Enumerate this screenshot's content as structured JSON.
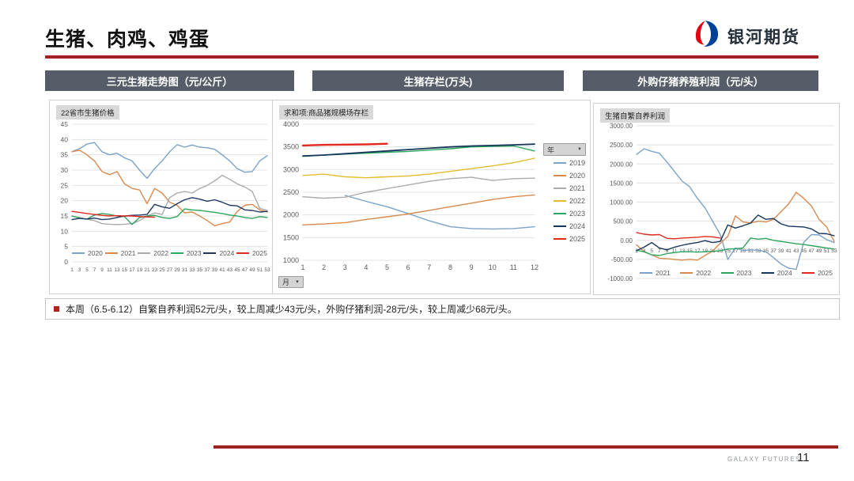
{
  "page": {
    "title": "生猪、肉鸡、鸡蛋",
    "accent_red": "#a32026",
    "header_bar_color": "#565d68",
    "footer_brand": "GALAXY FUTURES",
    "page_number": "11"
  },
  "logo": {
    "text": "银河期货",
    "red": "#e60012",
    "blue": "#004098"
  },
  "panels": [
    {
      "header": "三元生猪走势图（元/公斤）"
    },
    {
      "header": "生猪存栏(万头)"
    },
    {
      "header": "外购仔猪养殖利润（元/头）"
    }
  ],
  "filters": {
    "year_label": "年",
    "month_label": "月",
    "dropdown_arrow": "▼"
  },
  "note": {
    "text": "本周（6.5-6.12）自繁自养利润52元/头，较上周减少43元/头，外购仔猪利润-28元/头，较上周减少68元/头。"
  },
  "chart_data": [
    {
      "type": "line",
      "title": "22省市生猪价格",
      "ylabel": "元/公斤",
      "ylim": [
        0,
        45
      ],
      "ystep": 5,
      "ydecimals": 0,
      "xlim": [
        1,
        53
      ],
      "xticks": [
        1,
        3,
        5,
        7,
        9,
        11,
        13,
        15,
        17,
        19,
        21,
        23,
        25,
        27,
        29,
        31,
        33,
        35,
        37,
        39,
        41,
        43,
        45,
        47,
        49,
        51,
        53
      ],
      "tick_font": 8.5,
      "xtick_font": 6.5,
      "grid": true,
      "legend_position": "bottom",
      "series": [
        {
          "name": "2020",
          "color": "#7ba2c8",
          "x0": 1,
          "dx": 2,
          "values": [
            36,
            37,
            38.5,
            39,
            36,
            35,
            35.5,
            34,
            33,
            30,
            27.3,
            30.5,
            33,
            36,
            38.3,
            37.5,
            38.2,
            37.5,
            37.3,
            36.8,
            35,
            33,
            30.5,
            29.3,
            29.5,
            33,
            34.7
          ]
        },
        {
          "name": "2021",
          "color": "#d88a4e",
          "x0": 1,
          "dx": 2,
          "values": [
            36,
            36.5,
            35,
            33,
            29.5,
            28.5,
            29.5,
            25.5,
            24,
            23.5,
            19,
            24,
            22.5,
            19.5,
            18.5,
            16,
            16.3,
            15,
            13.5,
            11.8,
            12.5,
            13,
            16.5,
            18.5,
            18.8,
            17,
            16.3
          ]
        },
        {
          "name": "2022",
          "color": "#ababab",
          "x0": 1,
          "dx": 2,
          "values": [
            15,
            14.5,
            14,
            13.5,
            12.5,
            12.3,
            12.2,
            12.3,
            12.5,
            13.5,
            15,
            16,
            15.5,
            21,
            22.5,
            23,
            22.5,
            24,
            25,
            26.5,
            28.3,
            27,
            25.5,
            24.5,
            23,
            17.5,
            16.8
          ]
        },
        {
          "name": "2023",
          "color": "#2fa45f",
          "x0": 1,
          "dx": 2,
          "values": [
            15,
            14.3,
            14,
            15.3,
            15.8,
            15.5,
            15,
            14.8,
            12.2,
            14.5,
            15,
            15.2,
            14.5,
            14.2,
            14.8,
            17.3,
            17,
            16.8,
            16.5,
            16.2,
            15.8,
            15.3,
            15,
            14.5,
            14.2,
            14.8,
            14.5
          ]
        },
        {
          "name": "2024",
          "color": "#203864",
          "x0": 1,
          "dx": 2,
          "values": [
            13.8,
            14.2,
            14,
            14.3,
            13.8,
            14,
            14.5,
            15,
            15.2,
            15.3,
            15.5,
            18.8,
            18,
            17.5,
            19,
            20.3,
            21,
            20.5,
            19.8,
            20.3,
            19.5,
            18.5,
            18.3,
            17,
            16.8,
            16.3,
            16.5
          ]
        },
        {
          "name": "2025",
          "color": "#e02a20",
          "x0": 1,
          "dx": 2,
          "values": [
            16.5,
            16.2,
            15.8,
            15.5,
            15.2,
            15,
            15.1,
            15,
            15,
            14.8,
            14.7,
            14.6
          ]
        }
      ]
    },
    {
      "type": "line",
      "title": "求和项:商品猪规模场存栏",
      "ylabel": "万头",
      "ylim": [
        1000,
        4000
      ],
      "ystep": 500,
      "ydecimals": 0,
      "xlim": [
        1,
        12
      ],
      "xticks": [
        1,
        2,
        3,
        4,
        5,
        6,
        7,
        8,
        9,
        10,
        11,
        12
      ],
      "tick_font": 9,
      "xtick_font": 9,
      "grid": true,
      "legend_position": "right",
      "series": [
        {
          "name": "2019",
          "color": "#7ba2c8",
          "x0": 3,
          "dx": 1,
          "values": [
            2430,
            2300,
            2180,
            2030,
            1870,
            1740,
            1700,
            1690,
            1700,
            1740
          ]
        },
        {
          "name": "2020",
          "color": "#d88a4e",
          "x0": 1,
          "dx": 1,
          "values": [
            1780,
            1800,
            1830,
            1900,
            1960,
            2020,
            2100,
            2180,
            2260,
            2340,
            2400,
            2440
          ]
        },
        {
          "name": "2021",
          "color": "#ababab",
          "x0": 1,
          "dx": 1,
          "values": [
            2400,
            2370,
            2390,
            2500,
            2580,
            2660,
            2740,
            2800,
            2830,
            2760,
            2800,
            2810
          ]
        },
        {
          "name": "2022",
          "color": "#e3bd2f",
          "x0": 1,
          "dx": 1,
          "values": [
            2870,
            2900,
            2840,
            2820,
            2840,
            2860,
            2900,
            2960,
            3020,
            3080,
            3150,
            3250
          ]
        },
        {
          "name": "2023",
          "color": "#2fa45f",
          "x0": 1,
          "dx": 1,
          "values": [
            3290,
            3320,
            3340,
            3360,
            3380,
            3400,
            3430,
            3460,
            3500,
            3510,
            3520,
            3410
          ]
        },
        {
          "name": "2024",
          "color": "#16365c",
          "x0": 1,
          "dx": 1,
          "width": 1.8,
          "values": [
            3300,
            3320,
            3350,
            3380,
            3410,
            3440,
            3470,
            3500,
            3520,
            3530,
            3545,
            3560
          ]
        },
        {
          "name": "2025",
          "color": "#e02a20",
          "x0": 1,
          "dx": 1,
          "width": 2.4,
          "values": [
            3530,
            3545,
            3550,
            3555,
            3570
          ]
        }
      ]
    },
    {
      "type": "line",
      "title": "生猪自繁自养利润",
      "ylabel": "元/头",
      "ylim": [
        -1000,
        3000
      ],
      "ystep": 500,
      "ydecimals": 2,
      "xlim": [
        1,
        53
      ],
      "xticks": [
        1,
        3,
        5,
        7,
        9,
        11,
        13,
        15,
        17,
        19,
        21,
        23,
        25,
        27,
        29,
        31,
        33,
        35,
        37,
        39,
        41,
        43,
        45,
        47,
        49,
        51,
        53
      ],
      "tick_font": 8,
      "xtick_font": 6.5,
      "x_labels_at_value": -150,
      "grid": true,
      "legend_position": "bottom",
      "series": [
        {
          "name": "2021",
          "color": "#7ba2c8",
          "x0": 1,
          "dx": 2,
          "values": [
            2250,
            2400,
            2330,
            2280,
            2050,
            1800,
            1550,
            1400,
            1100,
            850,
            500,
            150,
            -500,
            -200,
            -270,
            -250,
            -260,
            -300,
            -450,
            -620,
            -730,
            -760,
            -50,
            150,
            140,
            20,
            -60
          ]
        },
        {
          "name": "2022",
          "color": "#d88a4e",
          "x0": 1,
          "dx": 2,
          "values": [
            -120,
            -300,
            -380,
            -470,
            -480,
            -500,
            -520,
            -500,
            -520,
            -400,
            -280,
            -80,
            100,
            640,
            480,
            450,
            500,
            480,
            550,
            750,
            950,
            1260,
            1100,
            900,
            550,
            350,
            -30
          ]
        },
        {
          "name": "2023",
          "color": "#2fa45f",
          "x0": 1,
          "dx": 2,
          "values": [
            -260,
            -300,
            -380,
            -400,
            -350,
            -320,
            -300,
            -300,
            -310,
            -300,
            -290,
            -270,
            -230,
            -220,
            -200,
            60,
            30,
            50,
            0,
            -30,
            -60,
            -90,
            -110,
            -140,
            -170,
            -200,
            -230
          ]
        },
        {
          "name": "2024",
          "color": "#16365c",
          "x0": 1,
          "dx": 2,
          "values": [
            -270,
            -180,
            -60,
            -200,
            -250,
            -180,
            -130,
            -90,
            -60,
            -10,
            -60,
            -30,
            400,
            320,
            380,
            450,
            660,
            550,
            570,
            430,
            370,
            360,
            350,
            300,
            180,
            170,
            120
          ]
        },
        {
          "name": "2025",
          "color": "#e02a20",
          "x0": 1,
          "dx": 2,
          "values": [
            200,
            160,
            140,
            150,
            50,
            40,
            60,
            70,
            80,
            100,
            90,
            60
          ]
        }
      ]
    }
  ]
}
